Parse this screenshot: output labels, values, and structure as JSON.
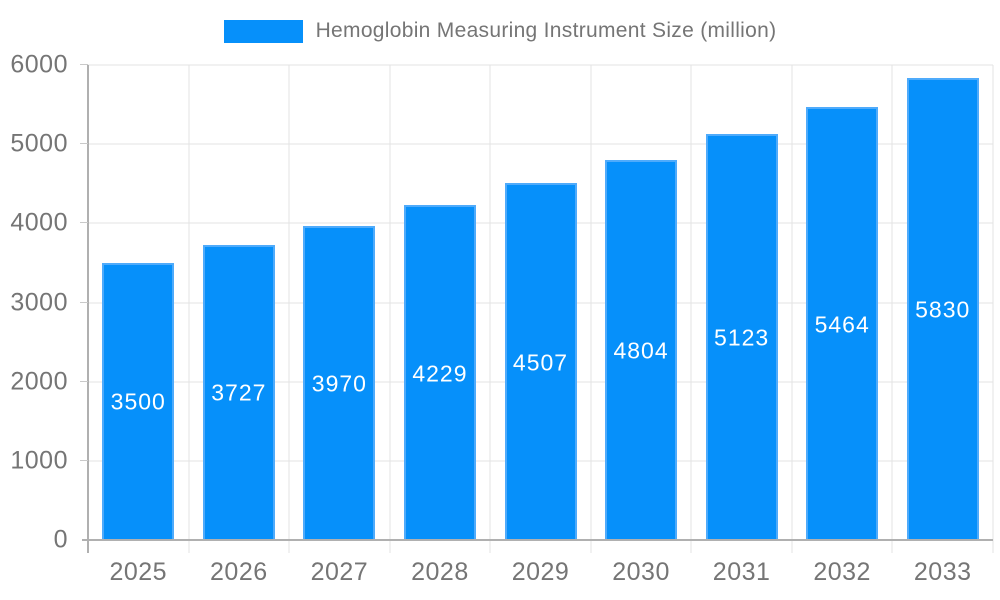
{
  "chart_data": {
    "type": "bar",
    "title": "Hemoglobin Measuring Instrument Size (million)",
    "legend": {
      "position": "top",
      "label": "Hemoglobin Measuring Instrument Size (million)"
    },
    "categories": [
      "2025",
      "2026",
      "2027",
      "2028",
      "2029",
      "2030",
      "2031",
      "2032",
      "2033"
    ],
    "values": [
      3500,
      3727,
      3970,
      4229,
      4507,
      4804,
      5123,
      5464,
      5830
    ],
    "xlabel": "",
    "ylabel": "",
    "ylim": [
      0,
      6000
    ],
    "ytick_step": 1000,
    "ytick_labels": [
      "0",
      "1000",
      "2000",
      "3000",
      "4000",
      "5000",
      "6000"
    ],
    "grid": true,
    "value_labels": {
      "position": "inside-center",
      "color": "#ffffff"
    },
    "colors": {
      "bar": "#0690fa",
      "bar_edge": "#4fabfb",
      "value_text": "#ffffff",
      "axis_text": "#757575",
      "legend_text": "#757575",
      "grid_line": "#e3e3e3",
      "axis_line": "#b0b0b0",
      "tick": "#c9c9c9",
      "background": "#ffffff"
    }
  }
}
